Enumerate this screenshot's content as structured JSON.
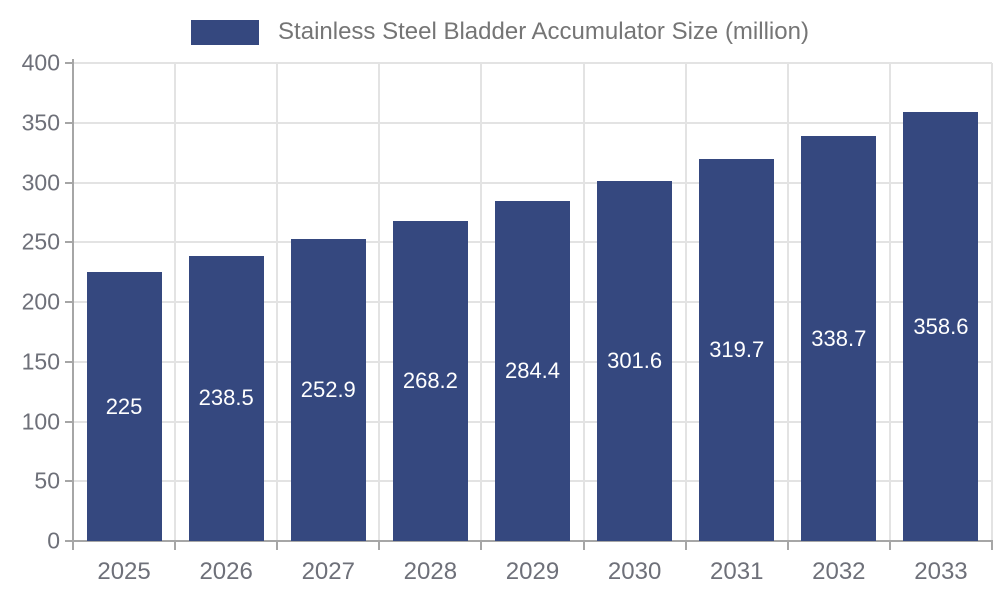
{
  "chart_data": {
    "type": "bar",
    "title": "Stainless Steel Bladder Accumulator Size (million)",
    "categories": [
      "2025",
      "2026",
      "2027",
      "2028",
      "2029",
      "2030",
      "2031",
      "2032",
      "2033"
    ],
    "values": [
      225,
      238.5,
      252.9,
      268.2,
      284.4,
      301.6,
      319.7,
      338.7,
      358.6
    ],
    "value_labels": [
      "225",
      "238.5",
      "252.9",
      "268.2",
      "284.4",
      "301.6",
      "319.7",
      "338.7",
      "358.6"
    ],
    "xlabel": "",
    "ylabel": "",
    "ylim": [
      0,
      400
    ],
    "ytick_step": 50,
    "ytick_labels": [
      "0",
      "50",
      "100",
      "150",
      "200",
      "250",
      "300",
      "350",
      "400"
    ],
    "grid": true,
    "legend_position": "top-center",
    "colors": {
      "bar": "#35487F",
      "axis_line": "#A6A6A6",
      "gridline": "#E3E3E3",
      "tick_label": "#6E7079",
      "legend_text": "#757575",
      "value_label": "#FFFFFF",
      "background": "#FFFFFF"
    }
  }
}
